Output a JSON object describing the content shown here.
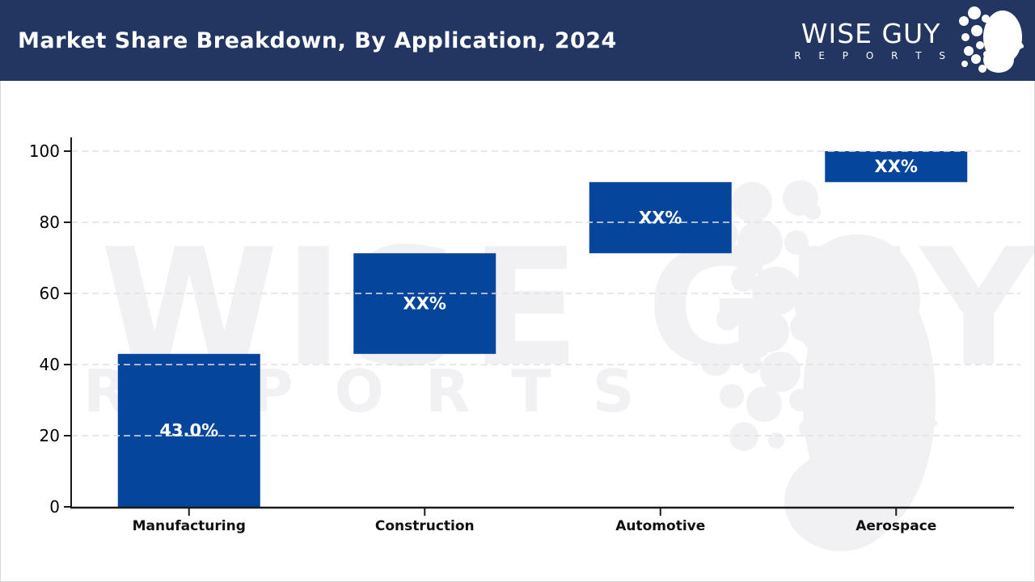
{
  "header": {
    "title": "Market Share Breakdown, By Application, 2024",
    "bg_color": "#223661",
    "logo": {
      "wordmark": "WISE GUY",
      "subtext": "R E P O R T S"
    }
  },
  "watermark": {
    "line1": "WISE GUY",
    "line2": "R E P O R T S"
  },
  "chart_data": {
    "type": "bar",
    "subtype": "waterfall",
    "title": "Market Share Breakdown, By Application, 2024",
    "categories": [
      "Manufacturing",
      "Construction",
      "Automotive",
      "Aerospace"
    ],
    "segments": [
      {
        "category": "Manufacturing",
        "start": 0,
        "end": 43.0,
        "label": "43.0%"
      },
      {
        "category": "Construction",
        "start": 43.0,
        "end": 71.3,
        "label": "XX%"
      },
      {
        "category": "Automotive",
        "start": 71.3,
        "end": 91.3,
        "label": "XX%"
      },
      {
        "category": "Aerospace",
        "start": 91.3,
        "end": 100.0,
        "label": "XX%"
      }
    ],
    "ylim": [
      0,
      100
    ],
    "yticks": [
      0,
      20,
      40,
      60,
      80,
      100
    ],
    "grid": true,
    "grid_style": "dashed",
    "grid_color": "#e1e1e1",
    "bar_color": "#05459C",
    "axis_color": "#1a1a1a",
    "bar_label_color": "#ffffff",
    "legend": "none"
  }
}
